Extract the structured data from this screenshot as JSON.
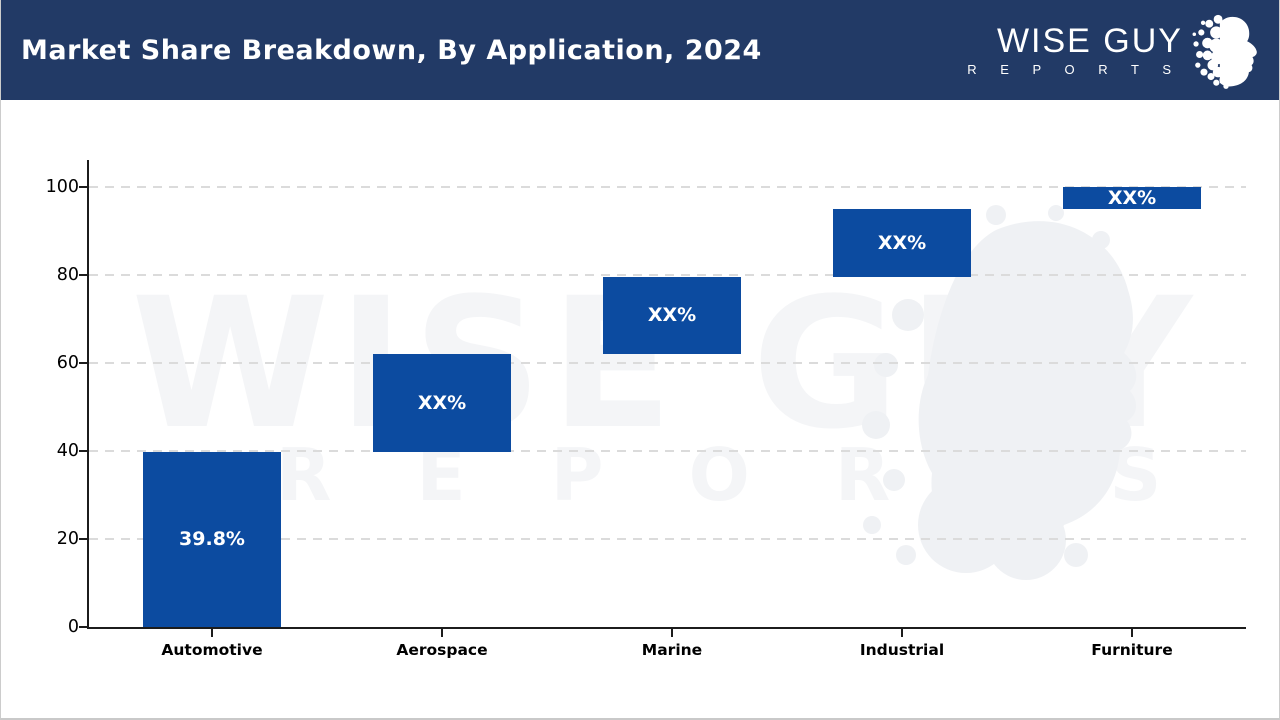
{
  "header": {
    "title": "Market Share Breakdown, By Application, 2024",
    "bg_color": "#223a66",
    "logo": {
      "line1": "WISE GUY",
      "line2": "R E P O R T S",
      "head_icon": "dotted-head-profile"
    }
  },
  "watermark": {
    "line1": "WISE GUY",
    "line2": "R E P O R T S",
    "head_icon": "head-profile-silhouette"
  },
  "chart_data": {
    "type": "bar",
    "subtype": "waterfall",
    "title": "Market Share Breakdown, By Application, 2024",
    "categories": [
      "Automotive",
      "Aerospace",
      "Marine",
      "Industrial",
      "Furniture"
    ],
    "segments": [
      {
        "category": "Automotive",
        "start": 0,
        "end": 39.8,
        "size": 39.8,
        "label": "39.8%"
      },
      {
        "category": "Aerospace",
        "start": 39.8,
        "end": 62,
        "size": 22.2,
        "label": "XX%"
      },
      {
        "category": "Marine",
        "start": 62,
        "end": 79.6,
        "size": 17.6,
        "label": "XX%"
      },
      {
        "category": "Industrial",
        "start": 79.6,
        "end": 95,
        "size": 15.4,
        "label": "XX%"
      },
      {
        "category": "Furniture",
        "start": 95,
        "end": 100,
        "size": 5.0,
        "label": "XX%"
      }
    ],
    "bar_color": "#0c4ba0",
    "label_color": "#ffffff",
    "yticks": [
      0,
      20,
      40,
      60,
      80,
      100
    ],
    "ylim": [
      0,
      106
    ],
    "xlabel": "",
    "ylabel": "",
    "grid": "horizontal-dashed",
    "grid_color": "#dbdbdb",
    "axis_color": "#1c1c1c",
    "legend": "none"
  }
}
